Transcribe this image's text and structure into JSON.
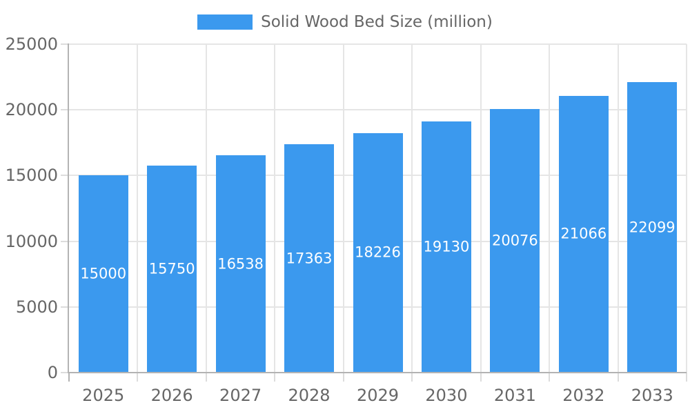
{
  "chart_data": {
    "type": "bar",
    "title": "Solid Wood Bed Size (million)",
    "categories": [
      "2025",
      "2026",
      "2027",
      "2028",
      "2029",
      "2030",
      "2031",
      "2032",
      "2033"
    ],
    "values": [
      15000,
      15750,
      16538,
      17363,
      18226,
      19130,
      20076,
      21066,
      22099
    ],
    "xlabel": "",
    "ylabel": "",
    "ylim": [
      0,
      25000
    ],
    "yticks": [
      0,
      5000,
      10000,
      15000,
      20000,
      25000
    ],
    "grid": true,
    "legend_position": "top-center",
    "value_labels": "inside-middle-white"
  },
  "colors": {
    "bar": "#3B99EE",
    "grid": "#e5e5e5",
    "tick": "#dcdcdc",
    "axis": "#b3b3b3",
    "text": "#666666",
    "value_label": "#ffffff",
    "background": "#ffffff"
  }
}
